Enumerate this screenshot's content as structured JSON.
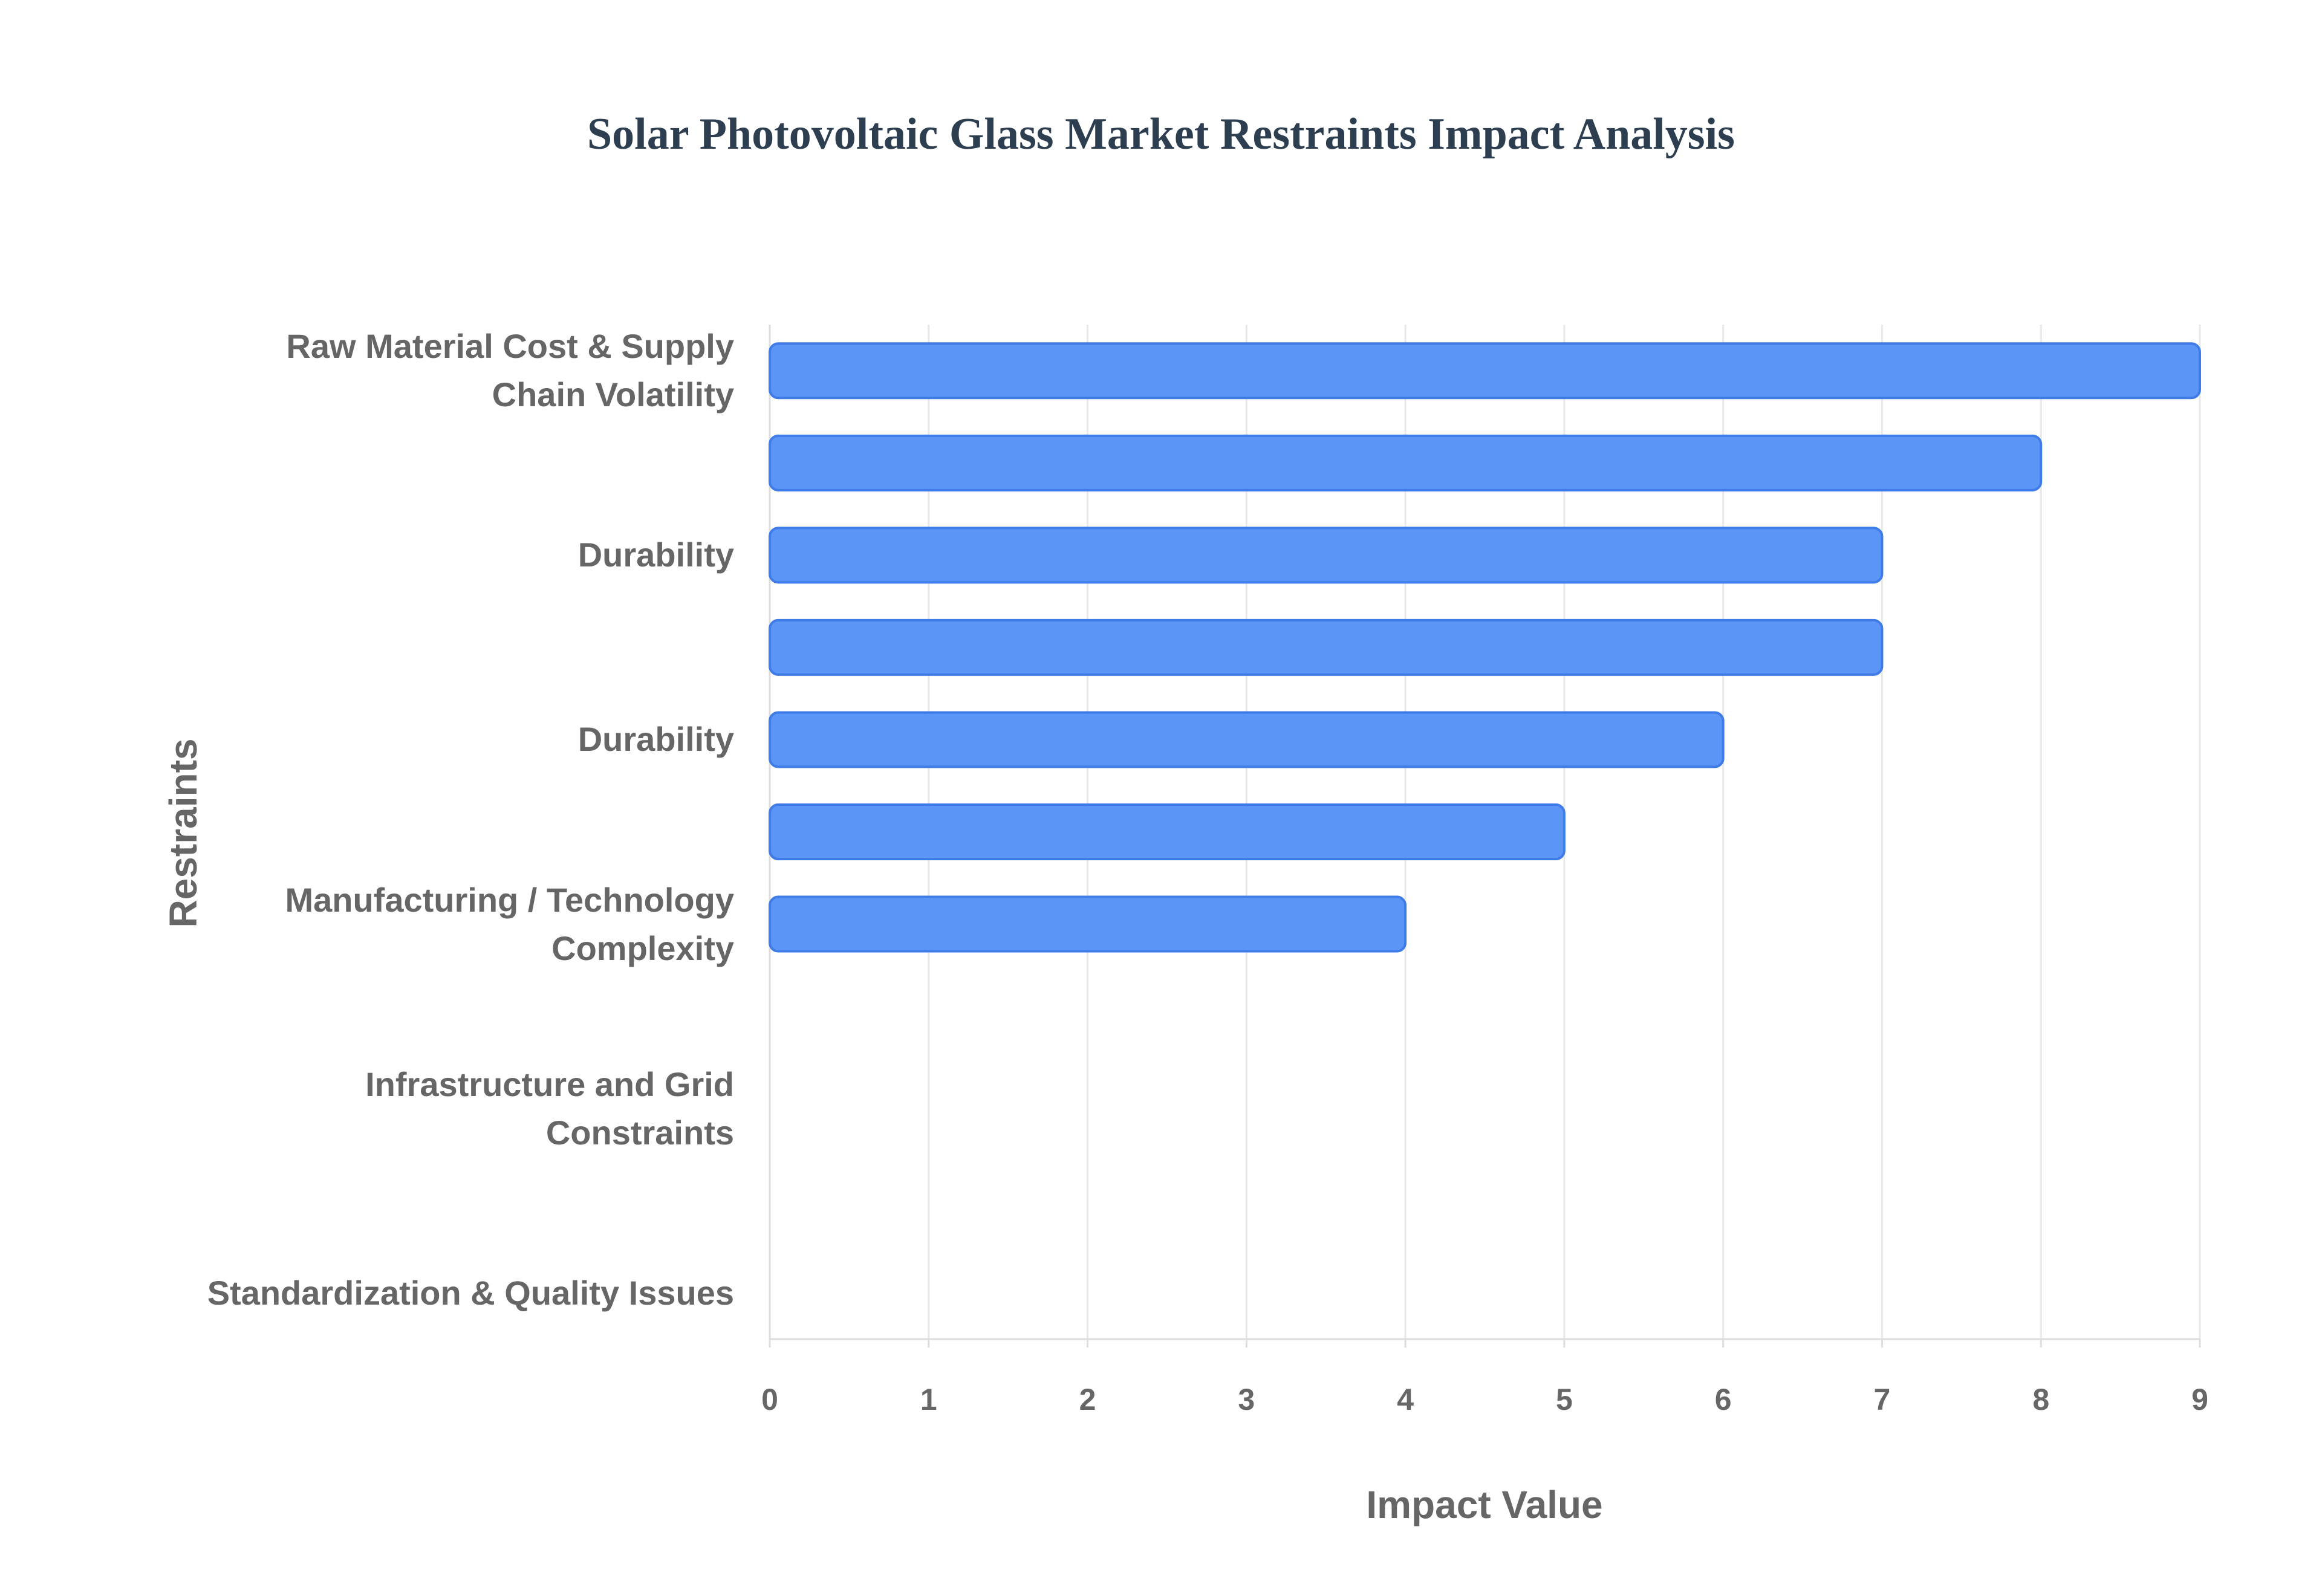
{
  "chart_data": {
    "type": "bar",
    "orientation": "horizontal",
    "title": "Solar Photovoltaic Glass Market Restraints Impact Analysis",
    "x_label": "Impact Value",
    "y_label": "Restraints",
    "categories": [
      "Raw Material Cost & Supply Chain Volatility",
      null,
      "Durability",
      null,
      "Durability",
      null,
      "Manufacturing / Technology Complexity",
      null,
      "Infrastructure and Grid Constraints",
      null,
      "Standardization & Quality Issues"
    ],
    "values": [
      9,
      8,
      7,
      7,
      6,
      5,
      4,
      null,
      null,
      null,
      null
    ],
    "color": "#5b95f5",
    "edge_color": "#3f7ce8",
    "xlim": [
      0,
      9
    ],
    "xticks": [
      0,
      1,
      2,
      3,
      4,
      5,
      6,
      7,
      8,
      9
    ],
    "grid": true
  }
}
